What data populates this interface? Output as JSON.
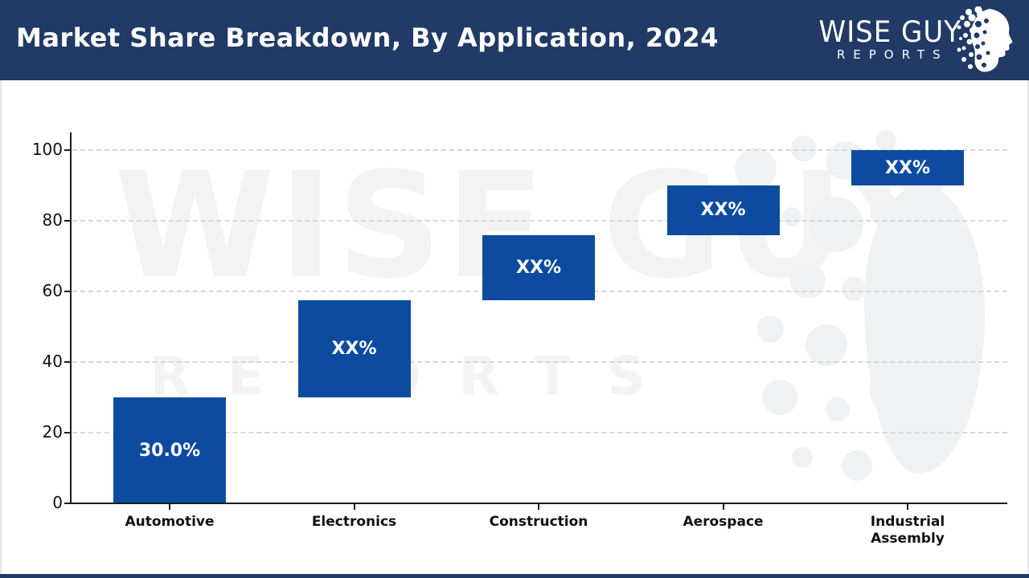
{
  "header": {
    "title": "Market Share Breakdown, By Application, 2024",
    "logo": {
      "line1": "WISE GUY",
      "line2": "REPORTS"
    }
  },
  "watermark": {
    "line1": "WISE GUY",
    "line2": "REPORTS"
  },
  "footer": {
    "bar_color": "#213a66"
  },
  "chart_data": {
    "type": "bar",
    "subtype": "floating-waterfall",
    "title": "Market Share Breakdown, By Application, 2024",
    "categories": [
      "Automotive",
      "Electronics",
      "Construction",
      "Aerospace",
      "Industrial\nAssembly"
    ],
    "series": [
      {
        "name": "Market Share",
        "segments": [
          {
            "category": "Automotive",
            "start": 0,
            "end": 30,
            "value": 30.0,
            "label": "30.0%"
          },
          {
            "category": "Electronics",
            "start": 30,
            "end": 57.5,
            "value": 27.5,
            "label": "XX%"
          },
          {
            "category": "Construction",
            "start": 57.5,
            "end": 76,
            "value": 18.5,
            "label": "XX%"
          },
          {
            "category": "Aerospace",
            "start": 76,
            "end": 90,
            "value": 14.0,
            "label": "XX%"
          },
          {
            "category": "Industrial Assembly",
            "start": 90,
            "end": 100,
            "value": 10.0,
            "label": "XX%"
          }
        ]
      }
    ],
    "yticks": [
      0,
      20,
      40,
      60,
      80,
      100
    ],
    "ylim": [
      0,
      105
    ],
    "xlabel": "",
    "ylabel": "",
    "grid": "horizontal-dashed",
    "legend": "none",
    "colors": {
      "bar": "#0c4ba0",
      "bar_label": "#ffffff",
      "grid": "#d8d8d8",
      "axis": "#1a1a1a",
      "header_bg": "#213a66",
      "watermark": "#f3f3f4"
    }
  }
}
